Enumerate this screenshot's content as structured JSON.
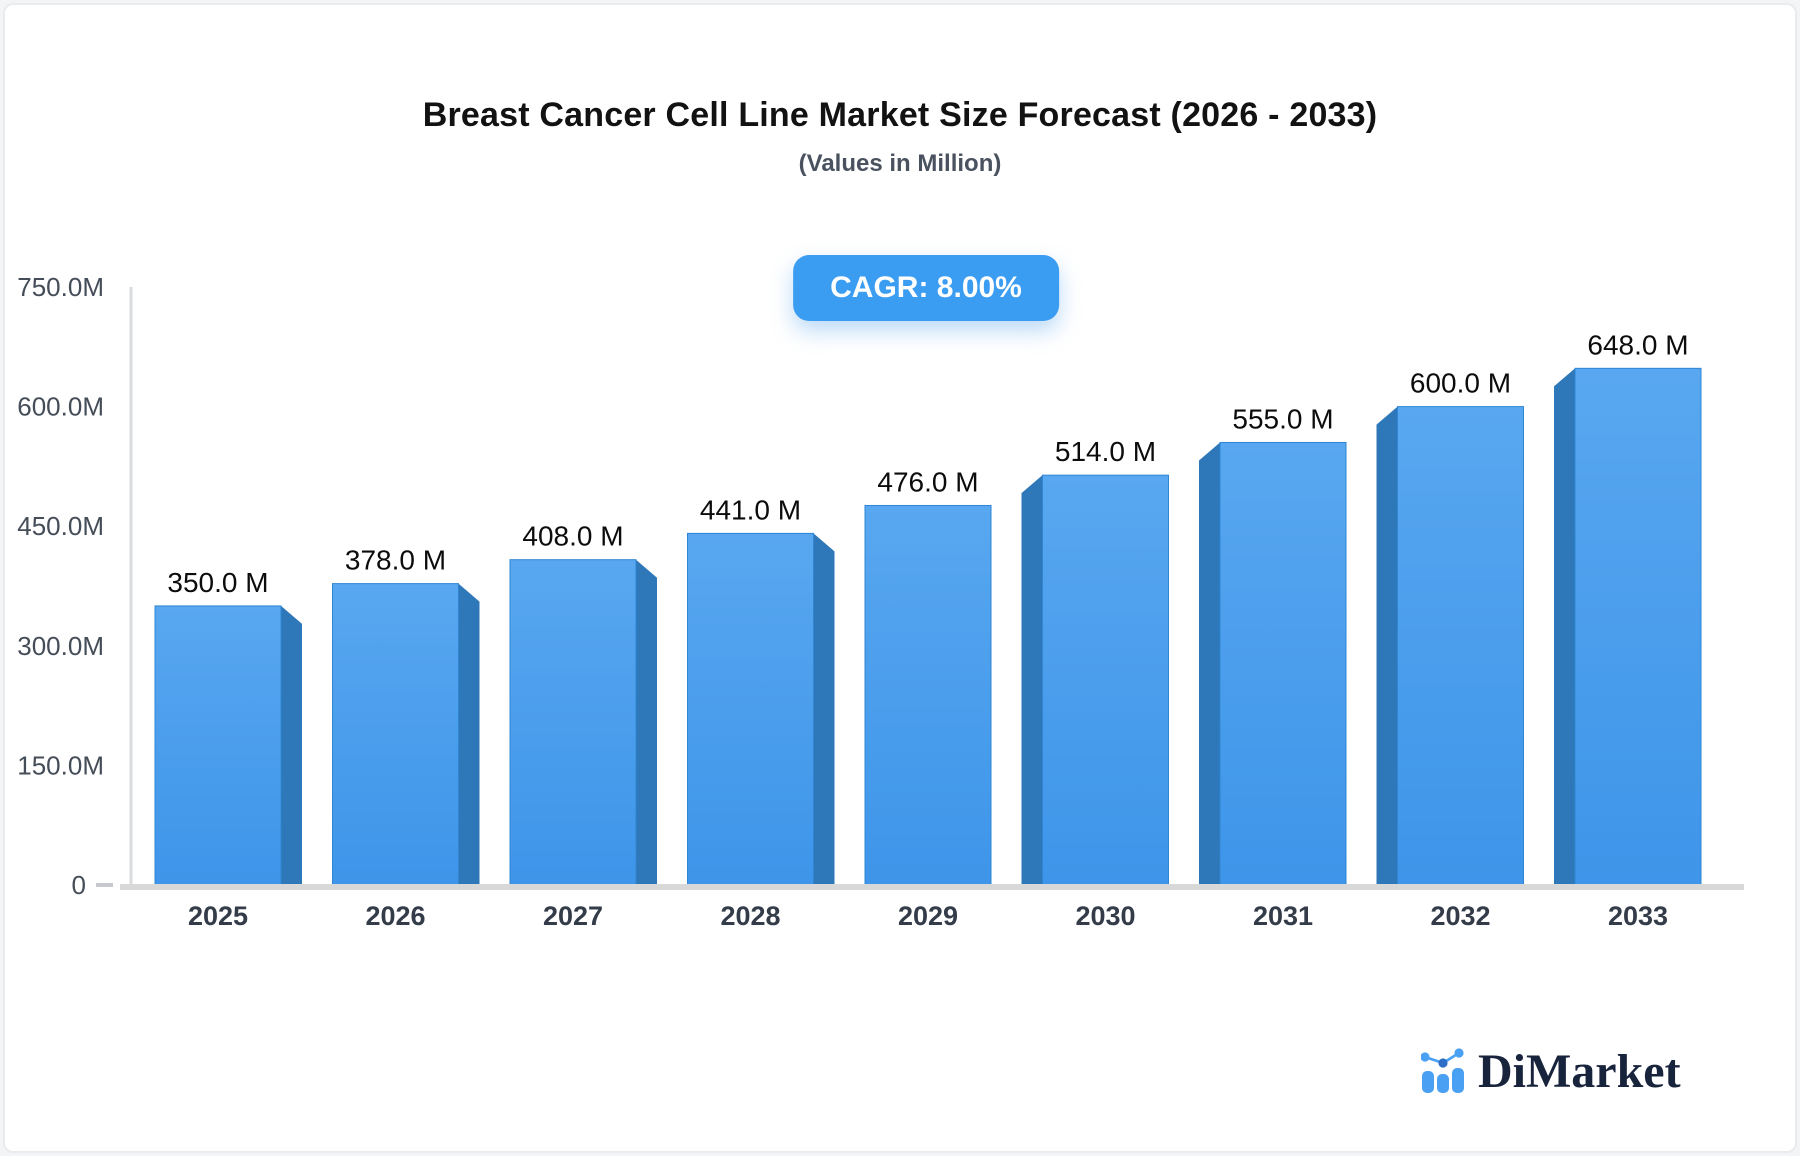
{
  "header": {
    "title": "Breast Cancer Cell Line Market Size Forecast (2026 - 2033)",
    "subtitle": "(Values in Million)",
    "cagr_badge": "CAGR: 8.00%"
  },
  "chart_data": {
    "type": "bar",
    "title": "Breast Cancer Cell Line Market Size Forecast (2026 - 2033)",
    "subtitle": "(Values in Million)",
    "cagr": "8.00%",
    "categories": [
      "2025",
      "2026",
      "2027",
      "2028",
      "2029",
      "2030",
      "2031",
      "2032",
      "2033"
    ],
    "values": [
      350,
      378,
      408,
      441,
      476,
      514,
      555,
      600,
      648
    ],
    "value_labels": [
      "350.0 M",
      "378.0 M",
      "408.0 M",
      "441.0 M",
      "476.0 M",
      "514.0 M",
      "555.0 M",
      "600.0 M",
      "648.0 M"
    ],
    "xlabel": "",
    "ylabel": "",
    "ylim": [
      0,
      750
    ],
    "y_ticks": [
      {
        "value": 750,
        "label": "750.0M"
      },
      {
        "value": 600,
        "label": "600.0M"
      },
      {
        "value": 450,
        "label": "450.0M"
      },
      {
        "value": 300,
        "label": "300.0M"
      },
      {
        "value": 150,
        "label": "150.0M"
      },
      {
        "value": 0,
        "label": "0"
      }
    ],
    "gridlines": "none",
    "legend": "none",
    "bar_style": "3d-perspective-toward-center"
  },
  "colors": {
    "bar_face_top": "#58a7f0",
    "bar_face_bottom": "#3e95e9",
    "bar_face_stroke": "#2f86d4",
    "bar_side": "#2e77b8",
    "badge_blue": "#3b9df1",
    "axis_line": "#d9dbde",
    "baseline": "#d8d8d8",
    "tick_text": "#454d59",
    "year_text": "#343c49",
    "value_text": "#0c0c0c",
    "logo_navy": "#18233c",
    "logo_blue": "#4aa0f2",
    "logo_dot_dark": "#2f6ec7"
  },
  "logo": {
    "text": "DiMarket",
    "icon": "bar-line-chart-icon"
  }
}
